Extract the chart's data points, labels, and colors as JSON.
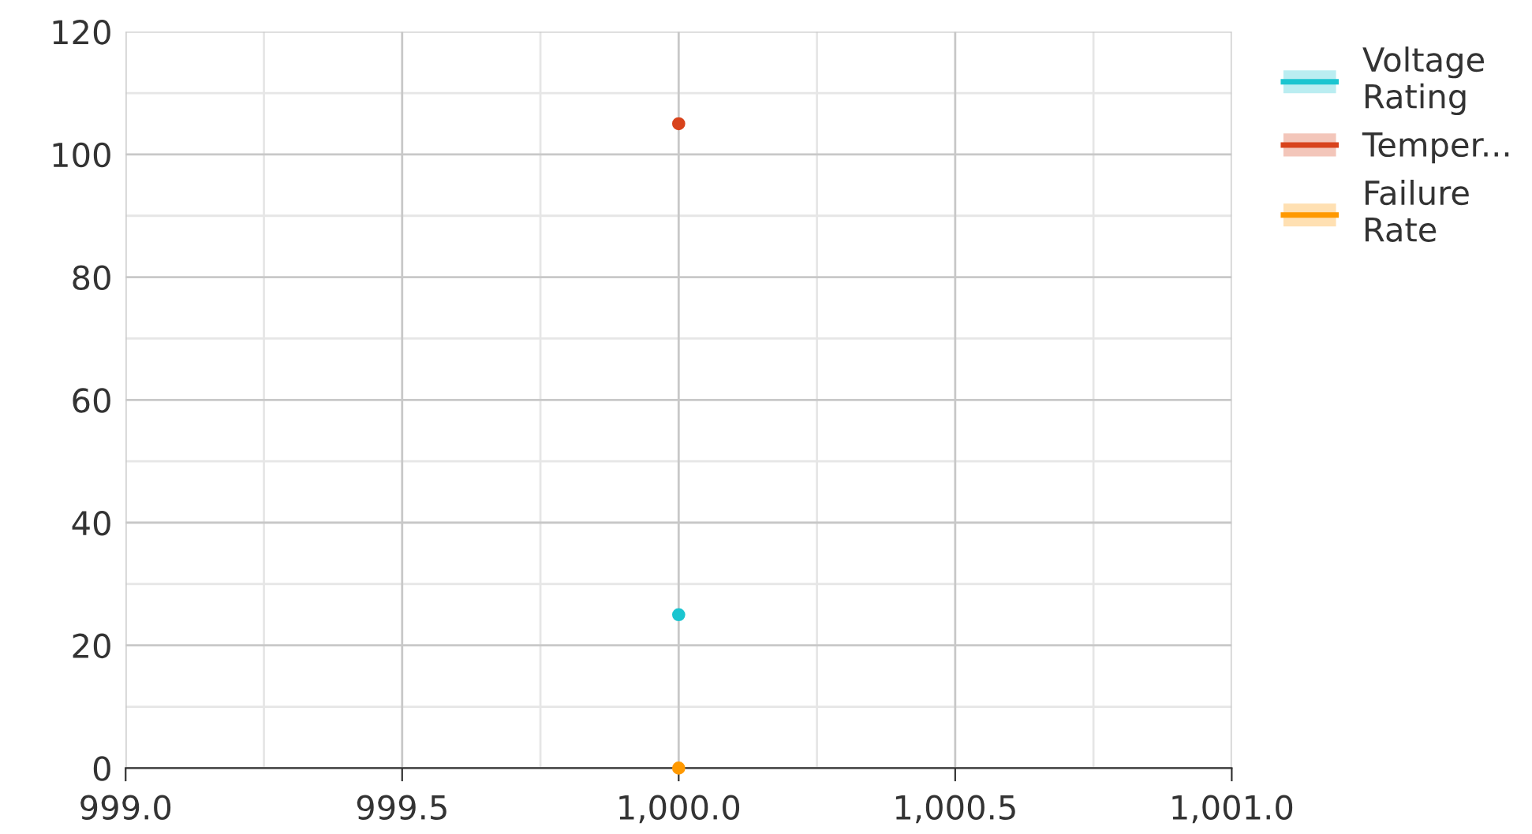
{
  "chart_data": {
    "type": "line",
    "x": [
      1000
    ],
    "series": [
      {
        "name": "Voltage Rating",
        "color": "#1bc5d0",
        "values": [
          25
        ]
      },
      {
        "name": "Temper...",
        "color": "#d8431c",
        "values": [
          105
        ]
      },
      {
        "name": "Failure Rate",
        "color": "#ff9900",
        "values": [
          0
        ]
      }
    ],
    "xlim": [
      999,
      1001
    ],
    "xticks": [
      {
        "value": 999,
        "label": "999.0"
      },
      {
        "value": 999.5,
        "label": "999.5"
      },
      {
        "value": 1000,
        "label": "1,000.0"
      },
      {
        "value": 1000.5,
        "label": "1,000.5"
      },
      {
        "value": 1001,
        "label": "1,001.0"
      }
    ],
    "ylim": [
      0,
      120
    ],
    "yticks": [
      0,
      20,
      40,
      60,
      80,
      100,
      120
    ],
    "grid": true,
    "legend": "top right",
    "marker": "circle",
    "line_style": "solid"
  }
}
